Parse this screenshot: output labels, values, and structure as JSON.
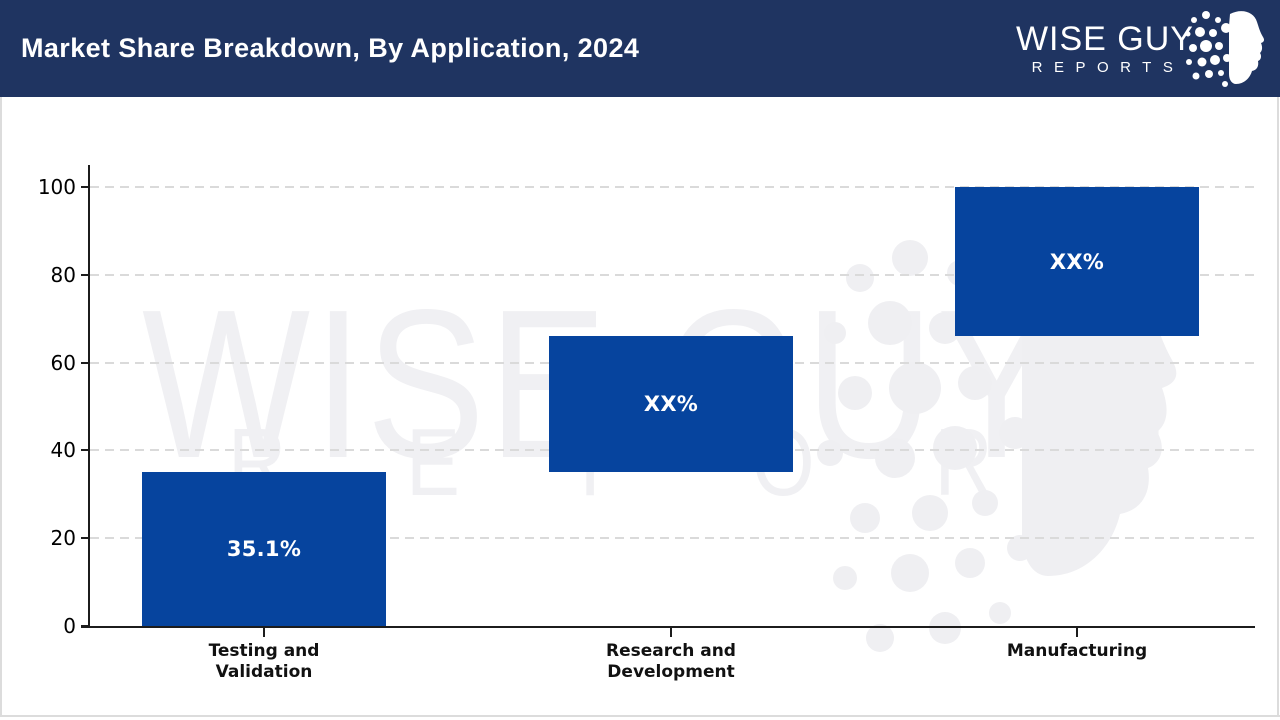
{
  "header": {
    "title": "Market Share Breakdown, By Application, 2024",
    "bg_color": "#1f3461",
    "logo": {
      "line1": "WISE GUY",
      "line2": "REPORTS",
      "icon": "dotted-face-logo"
    }
  },
  "watermark": {
    "line1": "WISE GUY",
    "line2": "R E P O R T S",
    "icon": "dotted-face-watermark"
  },
  "chart_data": {
    "type": "bar",
    "subtype": "waterfall-breakdown",
    "title": "Market Share Breakdown, By Application, 2024",
    "categories": [
      {
        "lines": [
          "Testing and",
          "Validation"
        ]
      },
      {
        "lines": [
          "Research and",
          "Development"
        ]
      },
      {
        "lines": [
          "Manufacturing"
        ]
      }
    ],
    "segments": [
      {
        "category": "Testing and Validation",
        "start": 0,
        "end": 35.1,
        "label": "35.1%"
      },
      {
        "category": "Research and Development",
        "start": 35.1,
        "end": 66.05,
        "label": "XX%"
      },
      {
        "category": "Manufacturing",
        "start": 66.05,
        "end": 100,
        "label": "XX%"
      }
    ],
    "yticks": [
      0,
      20,
      40,
      60,
      80,
      100
    ],
    "ylim": [
      0,
      105
    ],
    "xlabel": "",
    "ylabel": "",
    "legend": "none",
    "grid": "horizontal-dashed",
    "bar_color": "#06449e",
    "gridline_color": "#dadada",
    "axis_color": "#1c1c1c"
  }
}
